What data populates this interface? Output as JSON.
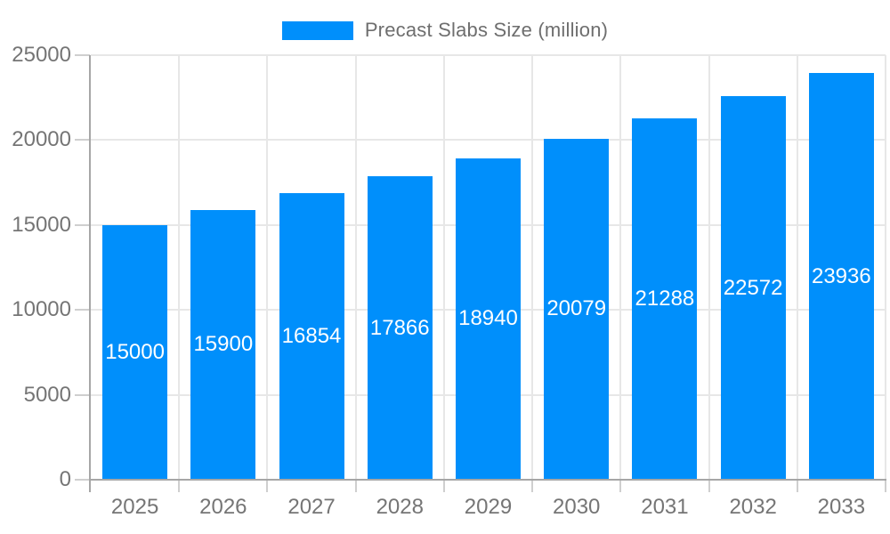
{
  "chart_data": {
    "type": "bar",
    "series_name": "Precast Slabs Size (million)",
    "categories": [
      "2025",
      "2026",
      "2027",
      "2028",
      "2029",
      "2030",
      "2031",
      "2032",
      "2033"
    ],
    "values": [
      15000,
      15900,
      16854,
      17866,
      18940,
      20079,
      21288,
      22572,
      23936
    ],
    "title": "",
    "xlabel": "",
    "ylabel": "",
    "ylim": [
      0,
      25000
    ],
    "yticks": [
      0,
      5000,
      10000,
      15000,
      20000,
      25000
    ],
    "grid": true,
    "legend_position": "top",
    "bar_color": "#008FFB",
    "value_label_color": "#ffffff",
    "axis_label_color": "#757575",
    "gridline_color": "#e7e7e7",
    "axis_line_color": "#a6a6a6"
  }
}
